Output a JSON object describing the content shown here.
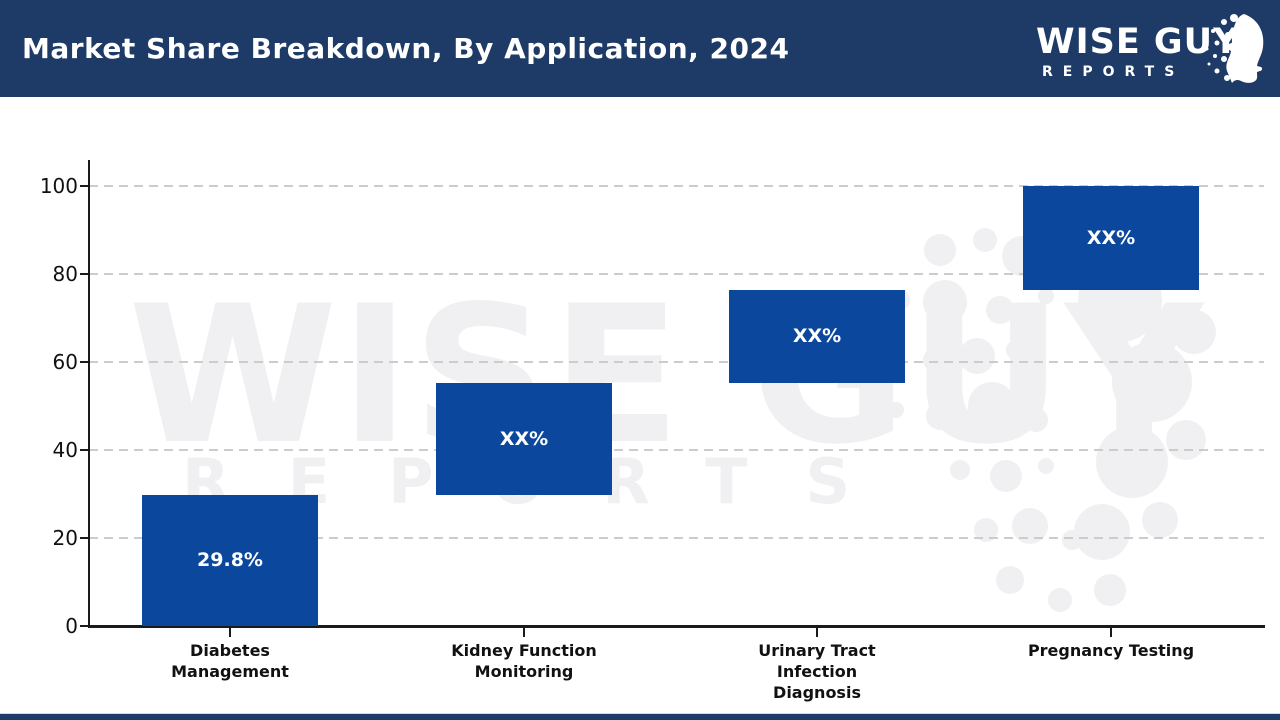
{
  "header": {
    "title": "Market Share Breakdown, By Application, 2024",
    "bg_color": "#1e3a67",
    "logo": {
      "line1": "WISE GUY",
      "line2": "REPORTS"
    }
  },
  "watermark": {
    "line1": "WISE GUY",
    "line2": "REPORTS"
  },
  "chart_data": {
    "type": "bar",
    "subtype": "waterfall",
    "title": "Market Share Breakdown, By Application, 2024",
    "categories": [
      "Diabetes Management",
      "Kidney Function Monitoring",
      "Urinary Tract Infection Diagnosis",
      "Pregnancy Testing"
    ],
    "categories_lines": [
      [
        "Diabetes",
        "Management"
      ],
      [
        "Kidney Function",
        "Monitoring"
      ],
      [
        "Urinary Tract",
        "Infection",
        "Diagnosis"
      ],
      [
        "Pregnancy Testing"
      ]
    ],
    "segments": [
      {
        "category": "Diabetes Management",
        "start": 0,
        "end": 29.8,
        "label": "29.8%"
      },
      {
        "category": "Kidney Function Monitoring",
        "start": 29.8,
        "end": 55.2,
        "label": "XX%"
      },
      {
        "category": "Urinary Tract Infection Diagnosis",
        "start": 55.2,
        "end": 76.4,
        "label": "XX%"
      },
      {
        "category": "Pregnancy Testing",
        "start": 76.4,
        "end": 100,
        "label": "XX%"
      }
    ],
    "xlabel": "",
    "ylabel": "",
    "ylim": [
      0,
      105
    ],
    "yticks": [
      0,
      20,
      40,
      60,
      80,
      100
    ],
    "grid": "horizontal-dashed",
    "legend": false,
    "bar_color": "#0b479c",
    "bar_label_color": "#ffffff",
    "axis_color": "#1a1a1a"
  },
  "footer": {
    "bg_color": "#1e3a67"
  }
}
